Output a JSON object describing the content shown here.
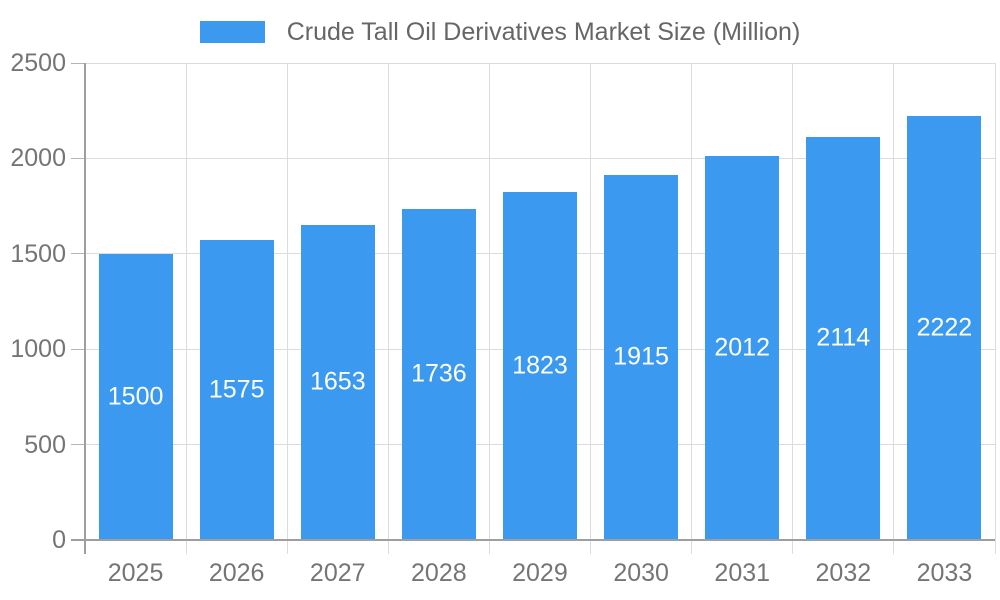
{
  "chart_data": {
    "type": "bar",
    "title": "Crude Tall Oil Derivatives Market Size (Million)",
    "categories": [
      "2025",
      "2026",
      "2027",
      "2028",
      "2029",
      "2030",
      "2031",
      "2032",
      "2033"
    ],
    "values": [
      1500,
      1575,
      1653,
      1736,
      1823,
      1915,
      2012,
      2114,
      2222
    ],
    "xlabel": "",
    "ylabel": "",
    "ylim": [
      0,
      2500
    ],
    "yticks": [
      0,
      500,
      1000,
      1500,
      2000,
      2500
    ],
    "grid": true,
    "legend_position": "top",
    "colors": {
      "bar": "#3B99EF",
      "grid": "#DCDCDC",
      "tick": "#B5B5B5",
      "axis": "#9E9E9E",
      "axis_text": "#757575",
      "legend_text": "#666666",
      "value_text": "#FFFFFF",
      "background": "#FFFFFF"
    }
  }
}
